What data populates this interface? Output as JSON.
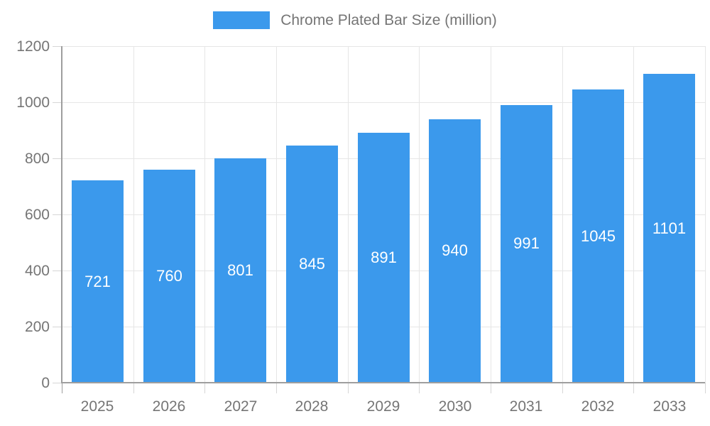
{
  "legend": {
    "label": "Chrome Plated Bar Size (million)"
  },
  "chart_data": {
    "type": "bar",
    "title": "",
    "xlabel": "",
    "ylabel": "",
    "categories": [
      "2025",
      "2026",
      "2027",
      "2028",
      "2029",
      "2030",
      "2031",
      "2032",
      "2033"
    ],
    "series": [
      {
        "name": "Chrome Plated Bar Size (million)",
        "values": [
          721,
          760,
          801,
          845,
          891,
          940,
          991,
          1045,
          1101
        ]
      }
    ],
    "bar_value_labels": [
      721,
      760,
      801,
      845,
      891,
      940,
      991,
      1045,
      1101
    ],
    "ylim": [
      0,
      1200
    ],
    "yticks": [
      0,
      200,
      400,
      600,
      800,
      1000,
      1200
    ],
    "grid": "on",
    "legend_position": "top-center"
  },
  "colors": {
    "bar": "#3b99ec",
    "bar_label": "#ffffff",
    "axis_line": "#9e9e9e",
    "gridline": "#e6e6e6",
    "tick": "#d6d6d6",
    "axis_text": "#757575",
    "legend_text": "#757575",
    "background": "#ffffff"
  }
}
